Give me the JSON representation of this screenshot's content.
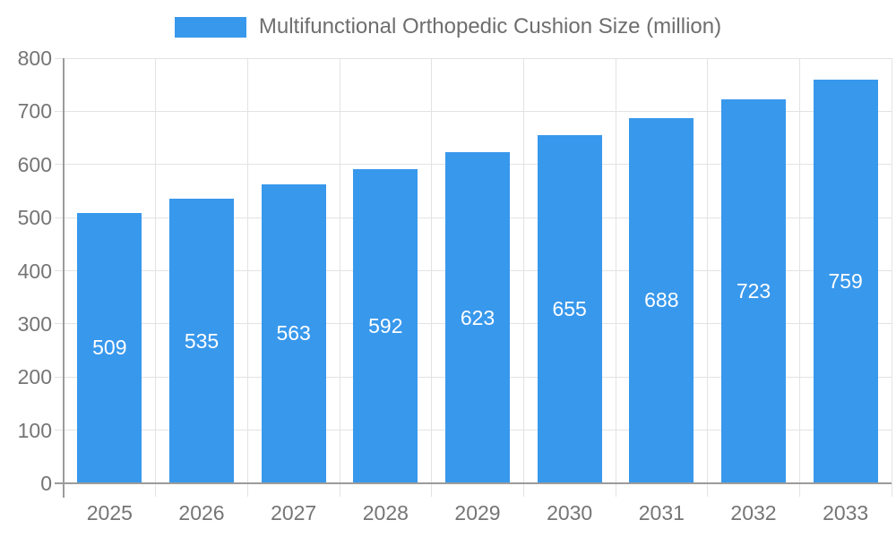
{
  "chart_data": {
    "type": "bar",
    "title": "Multifunctional Orthopedic Cushion Size (million)",
    "categories": [
      "2025",
      "2026",
      "2027",
      "2028",
      "2029",
      "2030",
      "2031",
      "2032",
      "2033"
    ],
    "values": [
      509,
      535,
      563,
      592,
      623,
      655,
      688,
      723,
      759
    ],
    "xlabel": "",
    "ylabel": "",
    "ylim": [
      0,
      800
    ],
    "y_ticks": [
      0,
      100,
      200,
      300,
      400,
      500,
      600,
      700,
      800
    ],
    "grid": "on",
    "legend_position": "top",
    "legend_entries": [
      "Multifunctional Orthopedic Cushion Size (million)"
    ],
    "colors": {
      "bar": "#3898EC",
      "grid": "#E3E3E3",
      "axis": "#9B9B9B",
      "tick_label": "#757575",
      "title": "#6E6E6E",
      "value_label": "#FFFFFF"
    }
  }
}
